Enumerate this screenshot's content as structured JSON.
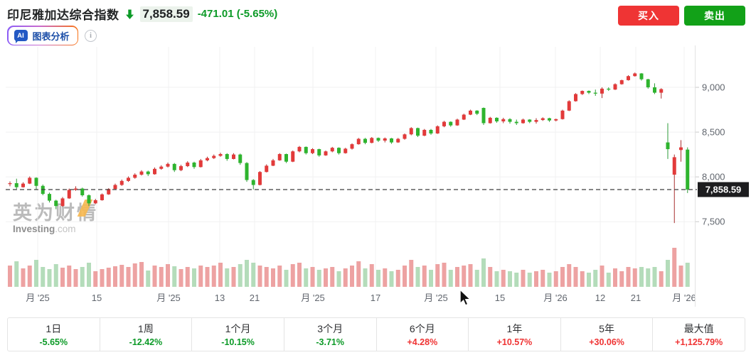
{
  "header": {
    "title": "印尼雅加达综合指数",
    "price": "7,858.59",
    "change": "-471.01 (-5.65%)",
    "ai_badge": "AI",
    "ai_button_label": "图表分析",
    "info_icon": "i",
    "buy_label": "买入",
    "sell_label": "卖出"
  },
  "watermark": {
    "cn": "英为财情",
    "en_bold": "Investing",
    "en_light": ".com"
  },
  "colors": {
    "up": "#e23a3a",
    "down": "#2eb42e",
    "up_wick": "#a83030",
    "down_wick": "#2e9b38",
    "vol_up": "#eda2a2",
    "vol_down": "#b4dcba",
    "grid": "#f1f1f2",
    "axis_text": "#61666e",
    "green_text": "#0c9a27",
    "red_text": "#ef3333",
    "buy_bg": "#ef3434",
    "sell_bg": "#12a118",
    "tag_bg": "#1d1d1f"
  },
  "chart_data": {
    "type": "candlestick",
    "title": "印尼雅加达综合指数",
    "last_price": 7858.59,
    "last_price_label": "7,858.59",
    "ylim": [
      7380,
      9450
    ],
    "grid": true,
    "y_axis": {
      "ticks": [
        {
          "label": "9,000",
          "value": 9000
        },
        {
          "label": "8,500",
          "value": 8500
        },
        {
          "label": "8,000",
          "value": 8000
        },
        {
          "label": "7,500",
          "value": 7500
        }
      ]
    },
    "x_axis": {
      "ticks": [
        {
          "x": 53,
          "label": "月 '25"
        },
        {
          "x": 136,
          "label": "15"
        },
        {
          "x": 237,
          "label": "月 '25"
        },
        {
          "x": 309,
          "label": "13"
        },
        {
          "x": 358,
          "label": "21"
        },
        {
          "x": 440,
          "label": "月 '25"
        },
        {
          "x": 528,
          "label": "17"
        },
        {
          "x": 613,
          "label": "月 '25"
        },
        {
          "x": 703,
          "label": "15"
        },
        {
          "x": 781,
          "label": "月 '26"
        },
        {
          "x": 844,
          "label": "12"
        },
        {
          "x": 894,
          "label": "21"
        },
        {
          "x": 962,
          "label": "月 '26"
        }
      ]
    },
    "candles": [
      [
        7925,
        7950,
        7895,
        7930,
        30
      ],
      [
        7930,
        7980,
        7865,
        7885,
        36
      ],
      [
        7885,
        7940,
        7880,
        7925,
        26
      ],
      [
        7925,
        8005,
        7920,
        7990,
        30
      ],
      [
        7990,
        7995,
        7855,
        7900,
        38
      ],
      [
        7900,
        7915,
        7795,
        7810,
        28
      ],
      [
        7810,
        7825,
        7715,
        7735,
        25
      ],
      [
        7735,
        7745,
        7640,
        7675,
        32
      ],
      [
        7675,
        7775,
        7665,
        7760,
        27
      ],
      [
        7760,
        7870,
        7755,
        7855,
        30
      ],
      [
        7855,
        7895,
        7845,
        7870,
        25
      ],
      [
        7870,
        7880,
        7780,
        7795,
        28
      ],
      [
        7795,
        7805,
        7675,
        7705,
        34
      ],
      [
        7705,
        7755,
        7695,
        7740,
        22
      ],
      [
        7740,
        7815,
        7735,
        7805,
        25
      ],
      [
        7805,
        7875,
        7800,
        7865,
        27
      ],
      [
        7865,
        7925,
        7855,
        7910,
        29
      ],
      [
        7910,
        7970,
        7900,
        7955,
        31
      ],
      [
        7955,
        8005,
        7945,
        7990,
        28
      ],
      [
        7990,
        8040,
        7980,
        8025,
        33
      ],
      [
        8025,
        8075,
        8015,
        8060,
        35
      ],
      [
        8060,
        8070,
        8010,
        8030,
        23
      ],
      [
        8030,
        8105,
        8025,
        8090,
        30
      ],
      [
        8090,
        8130,
        8080,
        8115,
        28
      ],
      [
        8115,
        8160,
        8105,
        8145,
        32
      ],
      [
        8145,
        8155,
        8055,
        8075,
        29
      ],
      [
        8075,
        8135,
        8065,
        8120,
        25
      ],
      [
        8120,
        8175,
        8110,
        8160,
        28
      ],
      [
        8160,
        8170,
        8090,
        8110,
        26
      ],
      [
        8110,
        8200,
        8105,
        8185,
        30
      ],
      [
        8185,
        8225,
        8175,
        8210,
        28
      ],
      [
        8210,
        8250,
        8200,
        8235,
        30
      ],
      [
        8235,
        8270,
        8225,
        8255,
        34
      ],
      [
        8255,
        8265,
        8180,
        8200,
        26
      ],
      [
        8200,
        8265,
        8195,
        8250,
        28
      ],
      [
        8250,
        8260,
        8135,
        8155,
        32
      ],
      [
        8155,
        8165,
        7945,
        7965,
        38
      ],
      [
        7965,
        7975,
        7860,
        7910,
        34
      ],
      [
        7910,
        8065,
        7905,
        8055,
        30
      ],
      [
        8055,
        8140,
        8050,
        8125,
        28
      ],
      [
        8125,
        8200,
        8120,
        8185,
        26
      ],
      [
        8185,
        8265,
        8180,
        8255,
        30
      ],
      [
        8255,
        8260,
        8155,
        8170,
        24
      ],
      [
        8170,
        8295,
        8165,
        8285,
        32
      ],
      [
        8285,
        8345,
        8275,
        8335,
        34
      ],
      [
        8335,
        8340,
        8250,
        8265,
        26
      ],
      [
        8265,
        8320,
        8255,
        8310,
        28
      ],
      [
        8310,
        8315,
        8225,
        8240,
        24
      ],
      [
        8240,
        8295,
        8235,
        8285,
        26
      ],
      [
        8285,
        8335,
        8275,
        8325,
        28
      ],
      [
        8325,
        8330,
        8250,
        8265,
        22
      ],
      [
        8265,
        8325,
        8260,
        8315,
        26
      ],
      [
        8315,
        8375,
        8305,
        8365,
        30
      ],
      [
        8365,
        8435,
        8360,
        8425,
        36
      ],
      [
        8425,
        8435,
        8365,
        8380,
        26
      ],
      [
        8380,
        8445,
        8375,
        8435,
        32
      ],
      [
        8435,
        8440,
        8390,
        8405,
        24
      ],
      [
        8405,
        8440,
        8385,
        8430,
        26
      ],
      [
        8430,
        8435,
        8370,
        8385,
        22
      ],
      [
        8385,
        8435,
        8380,
        8425,
        24
      ],
      [
        8425,
        8485,
        8415,
        8475,
        30
      ],
      [
        8475,
        8555,
        8465,
        8545,
        38
      ],
      [
        8545,
        8550,
        8445,
        8460,
        28
      ],
      [
        8460,
        8535,
        8455,
        8525,
        30
      ],
      [
        8525,
        8535,
        8470,
        8485,
        24
      ],
      [
        8485,
        8575,
        8480,
        8565,
        32
      ],
      [
        8565,
        8625,
        8555,
        8615,
        34
      ],
      [
        8615,
        8620,
        8560,
        8575,
        24
      ],
      [
        8575,
        8650,
        8570,
        8640,
        28
      ],
      [
        8640,
        8705,
        8635,
        8695,
        30
      ],
      [
        8695,
        8750,
        8690,
        8740,
        32
      ],
      [
        8740,
        8745,
        8690,
        8705,
        24
      ],
      [
        8770,
        8775,
        8580,
        8600,
        40
      ],
      [
        8600,
        8670,
        8595,
        8660,
        28
      ],
      [
        8660,
        8665,
        8605,
        8620,
        22
      ],
      [
        8620,
        8660,
        8600,
        8645,
        24
      ],
      [
        8645,
        8655,
        8595,
        8615,
        22
      ],
      [
        8615,
        8640,
        8580,
        8600,
        20
      ],
      [
        8600,
        8650,
        8595,
        8640,
        24
      ],
      [
        8640,
        8645,
        8600,
        8615,
        20
      ],
      [
        8615,
        8655,
        8595,
        8635,
        22
      ],
      [
        8635,
        8665,
        8625,
        8655,
        24
      ],
      [
        8655,
        8660,
        8615,
        8630,
        20
      ],
      [
        8630,
        8650,
        8620,
        8645,
        22
      ],
      [
        8645,
        8750,
        8640,
        8740,
        28
      ],
      [
        8740,
        8855,
        8735,
        8845,
        32
      ],
      [
        8845,
        8935,
        8840,
        8925,
        28
      ],
      [
        8925,
        8965,
        8915,
        8960,
        22
      ],
      [
        8960,
        8965,
        8925,
        8940,
        20
      ],
      [
        8940,
        8975,
        8905,
        8930,
        24
      ],
      [
        8930,
        9000,
        8880,
        8985,
        30
      ],
      [
        8985,
        9000,
        8960,
        8975,
        20
      ],
      [
        8975,
        9045,
        8970,
        9035,
        26
      ],
      [
        9035,
        9085,
        9030,
        9080,
        22
      ],
      [
        9080,
        9135,
        9075,
        9125,
        28
      ],
      [
        9125,
        9165,
        9120,
        9155,
        26
      ],
      [
        9155,
        9160,
        9075,
        9090,
        28
      ],
      [
        9090,
        9095,
        8985,
        9000,
        26
      ],
      [
        9000,
        9045,
        8925,
        8940,
        28
      ],
      [
        8940,
        8990,
        8875,
        8980,
        22
      ],
      [
        8385,
        8600,
        8200,
        8310,
        38
      ],
      [
        8025,
        8250,
        7485,
        8220,
        55
      ],
      [
        8300,
        8410,
        8170,
        8330,
        30
      ],
      [
        8305,
        8330,
        7820,
        7858.59,
        34
      ]
    ]
  },
  "periods": [
    {
      "label": "1日",
      "value": "-5.65%",
      "direction": "down"
    },
    {
      "label": "1周",
      "value": "-12.42%",
      "direction": "down"
    },
    {
      "label": "1个月",
      "value": "-10.15%",
      "direction": "down"
    },
    {
      "label": "3个月",
      "value": "-3.71%",
      "direction": "down"
    },
    {
      "label": "6个月",
      "value": "+4.28%",
      "direction": "up"
    },
    {
      "label": "1年",
      "value": "+10.57%",
      "direction": "up"
    },
    {
      "label": "5年",
      "value": "+30.06%",
      "direction": "up"
    },
    {
      "label": "最大值",
      "value": "+1,125.79%",
      "direction": "up"
    }
  ]
}
